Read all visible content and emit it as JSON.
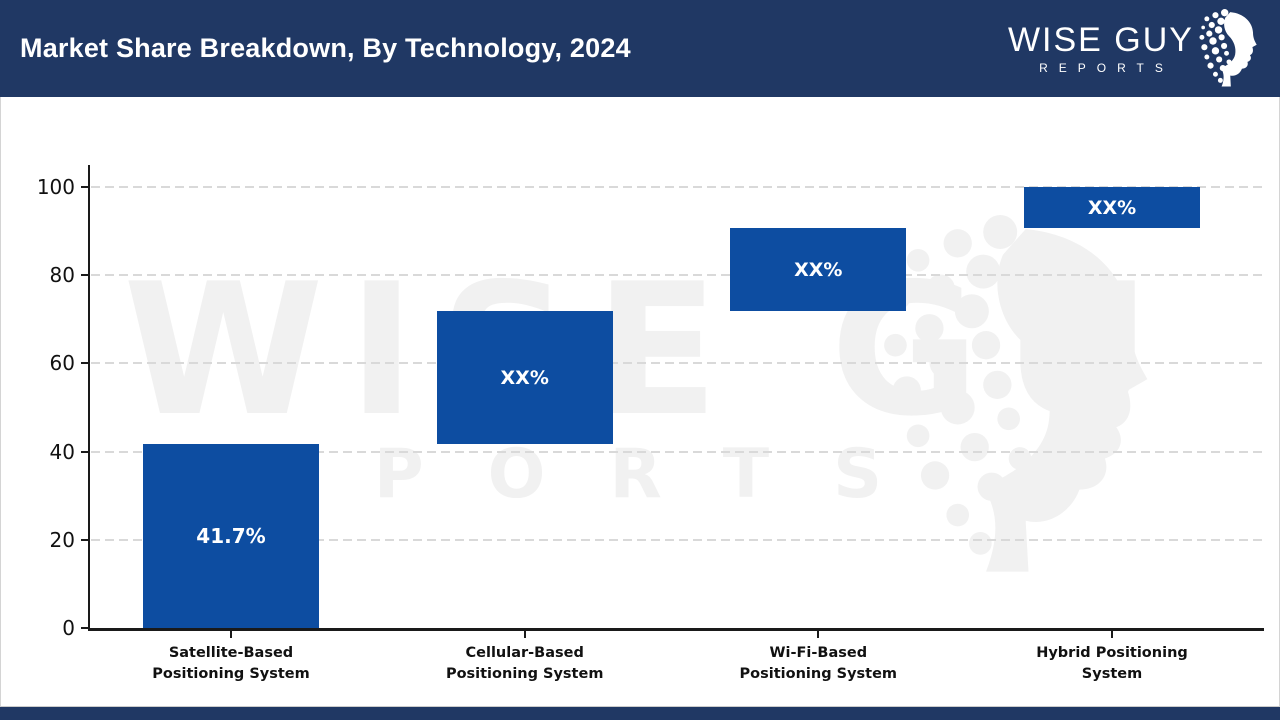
{
  "header": {
    "title": "Market Share Breakdown, By Technology, 2024",
    "logo": {
      "line1": "WISE GUY",
      "line2": "REPORTS"
    }
  },
  "watermark": {
    "line1": "WISE GU",
    "line2": "REPORTS"
  },
  "chart_data": {
    "type": "bar",
    "subtype": "waterfall",
    "title": "Market Share Breakdown, By Technology, 2024",
    "categories": [
      "Satellite-Based Positioning System",
      "Cellular-Based Positioning System",
      "Wi-Fi-Based Positioning System",
      "Hybrid Positioning System"
    ],
    "category_lines": [
      [
        "Satellite-Based",
        "Positioning System"
      ],
      [
        "Cellular-Based",
        "Positioning System"
      ],
      [
        "Wi-Fi-Based",
        "Positioning System"
      ],
      [
        "Hybrid Positioning",
        "System"
      ]
    ],
    "bars": [
      {
        "label": "41.7%",
        "start": 0,
        "end": 41.7
      },
      {
        "label": "XX%",
        "start": 41.7,
        "end": 71.8
      },
      {
        "label": "XX%",
        "start": 71.8,
        "end": 90.6
      },
      {
        "label": "XX%",
        "start": 90.6,
        "end": 100
      }
    ],
    "yticks": [
      0,
      20,
      40,
      60,
      80,
      100
    ],
    "ylim": [
      0,
      100
    ],
    "xlabel": "",
    "ylabel": "",
    "grid": "horizontal-dashed",
    "legend": "none",
    "bar_color": "#0d4da1",
    "value_label_color": "#ffffff"
  },
  "colors": {
    "header_bg": "#203864",
    "footer_bg": "#203864",
    "bar": "#0d4da1",
    "gridline": "#d9d9d9",
    "axis": "#1a1a1a",
    "watermark": "#f1f1f1",
    "chart_bg": "#ffffff"
  }
}
